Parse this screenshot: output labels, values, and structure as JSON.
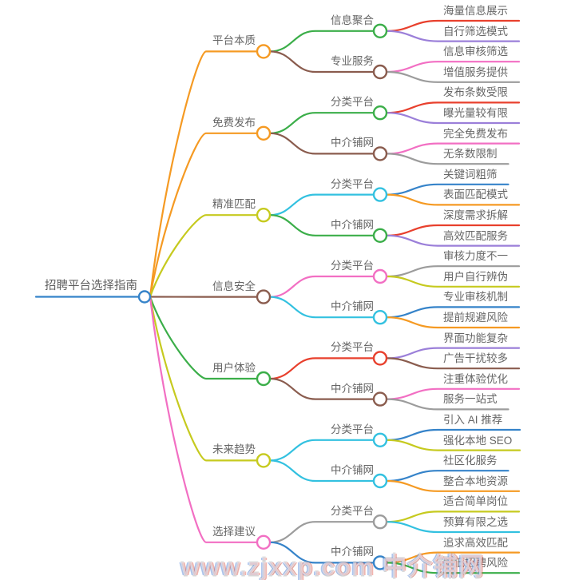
{
  "root": {
    "label": "招聘平台选择指南",
    "color": "blue"
  },
  "watermark": {
    "text": "www.zjxxp.com 中介铺网"
  },
  "palette": {
    "orange": "#F59A23",
    "green": "#3BAE49",
    "brown": "#8A5C4E",
    "olive": "#C6CA1F",
    "cyan": "#33C1E0",
    "pink": "#F26FC3",
    "red": "#E8402D",
    "purple": "#9B7FD9",
    "blue": "#3583C9",
    "gray": "#9C9C9C"
  },
  "branches": [
    {
      "label": "平台本质",
      "color": "orange",
      "children": [
        {
          "label": "信息聚合",
          "color": "green",
          "leaves": [
            {
              "label": "海量信息展示",
              "color": "red"
            },
            {
              "label": "自行筛选模式",
              "color": "purple"
            }
          ]
        },
        {
          "label": "专业服务",
          "color": "brown",
          "leaves": [
            {
              "label": "信息审核筛选",
              "color": "pink"
            },
            {
              "label": "增值服务提供",
              "color": "gray"
            }
          ]
        }
      ]
    },
    {
      "label": "免费发布",
      "color": "orange",
      "children": [
        {
          "label": "分类平台",
          "color": "green",
          "leaves": [
            {
              "label": "发布条数受限",
              "color": "red"
            },
            {
              "label": "曝光量较有限",
              "color": "purple"
            }
          ]
        },
        {
          "label": "中介铺网",
          "color": "brown",
          "leaves": [
            {
              "label": "完全免费发布",
              "color": "pink"
            },
            {
              "label": "无条数限制",
              "color": "gray"
            }
          ]
        }
      ]
    },
    {
      "label": "精准匹配",
      "color": "olive",
      "children": [
        {
          "label": "分类平台",
          "color": "cyan",
          "leaves": [
            {
              "label": "关键词粗筛",
              "color": "blue"
            },
            {
              "label": "表面匹配模式",
              "color": "orange"
            }
          ]
        },
        {
          "label": "中介铺网",
          "color": "green",
          "leaves": [
            {
              "label": "深度需求拆解",
              "color": "red"
            },
            {
              "label": "高效匹配服务",
              "color": "purple"
            }
          ]
        }
      ]
    },
    {
      "label": "信息安全",
      "color": "brown",
      "children": [
        {
          "label": "分类平台",
          "color": "pink",
          "leaves": [
            {
              "label": "审核力度不一",
              "color": "gray"
            },
            {
              "label": "用户自行辨伪",
              "color": "olive"
            }
          ]
        },
        {
          "label": "中介铺网",
          "color": "cyan",
          "leaves": [
            {
              "label": "专业审核机制",
              "color": "blue"
            },
            {
              "label": "提前规避风险",
              "color": "orange"
            }
          ]
        }
      ]
    },
    {
      "label": "用户体验",
      "color": "green",
      "children": [
        {
          "label": "分类平台",
          "color": "red",
          "leaves": [
            {
              "label": "界面功能复杂",
              "color": "purple"
            },
            {
              "label": "广告干扰较多",
              "color": "brown"
            }
          ]
        },
        {
          "label": "中介铺网",
          "color": "brown",
          "leaves": [
            {
              "label": "注重体验优化",
              "color": "pink"
            },
            {
              "label": "服务一站式",
              "color": "gray"
            }
          ]
        }
      ]
    },
    {
      "label": "未来趋势",
      "color": "olive",
      "children": [
        {
          "label": "分类平台",
          "color": "cyan",
          "leaves": [
            {
              "label": "引入 AI 推荐",
              "color": "blue"
            },
            {
              "label": "强化本地 SEO",
              "color": "olive"
            }
          ]
        },
        {
          "label": "中介铺网",
          "color": "cyan",
          "leaves": [
            {
              "label": "社区化服务",
              "color": "blue"
            },
            {
              "label": "整合本地资源",
              "color": "orange"
            }
          ]
        }
      ]
    },
    {
      "label": "选择建议",
      "color": "pink",
      "children": [
        {
          "label": "分类平台",
          "color": "gray",
          "leaves": [
            {
              "label": "适合简单岗位",
              "color": "olive"
            },
            {
              "label": "预算有限之选",
              "color": "cyan"
            }
          ]
        },
        {
          "label": "中介铺网",
          "color": "blue",
          "leaves": [
            {
              "label": "追求高效匹配",
              "color": "orange"
            },
            {
              "label": "降低招聘风险",
              "color": "green"
            }
          ]
        }
      ]
    }
  ]
}
